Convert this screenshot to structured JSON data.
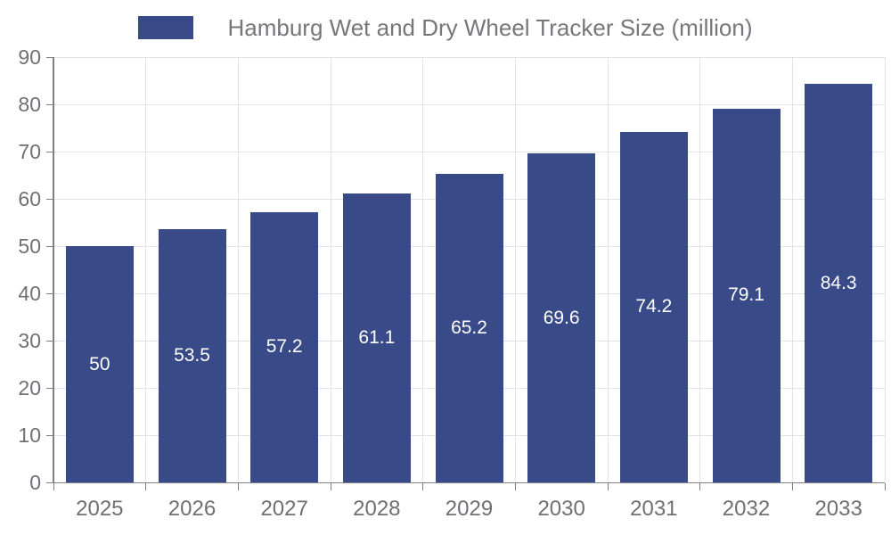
{
  "chart_data": {
    "type": "bar",
    "title": "Hamburg Wet and Dry Wheel Tracker Size (million)",
    "categories": [
      "2025",
      "2026",
      "2027",
      "2028",
      "2029",
      "2030",
      "2031",
      "2032",
      "2033"
    ],
    "values": [
      50,
      53.5,
      57.2,
      61.1,
      65.2,
      69.6,
      74.2,
      79.1,
      84.3
    ],
    "xlabel": "",
    "ylabel": "",
    "ylim": [
      0,
      90
    ],
    "ytick_step": 10,
    "yticks": [
      0,
      10,
      20,
      30,
      40,
      50,
      60,
      70,
      80,
      90
    ],
    "grid": true,
    "legend_position": "top",
    "bar_label_position": "inside-middle"
  },
  "colors": {
    "bar": "#384A87",
    "bar_label": "#ffffff",
    "grid": "#e0e3ea",
    "axis": "#7f7f86",
    "tick_label": "#6f6f75",
    "legend_text": "#76767b",
    "background": "#ffffff"
  }
}
